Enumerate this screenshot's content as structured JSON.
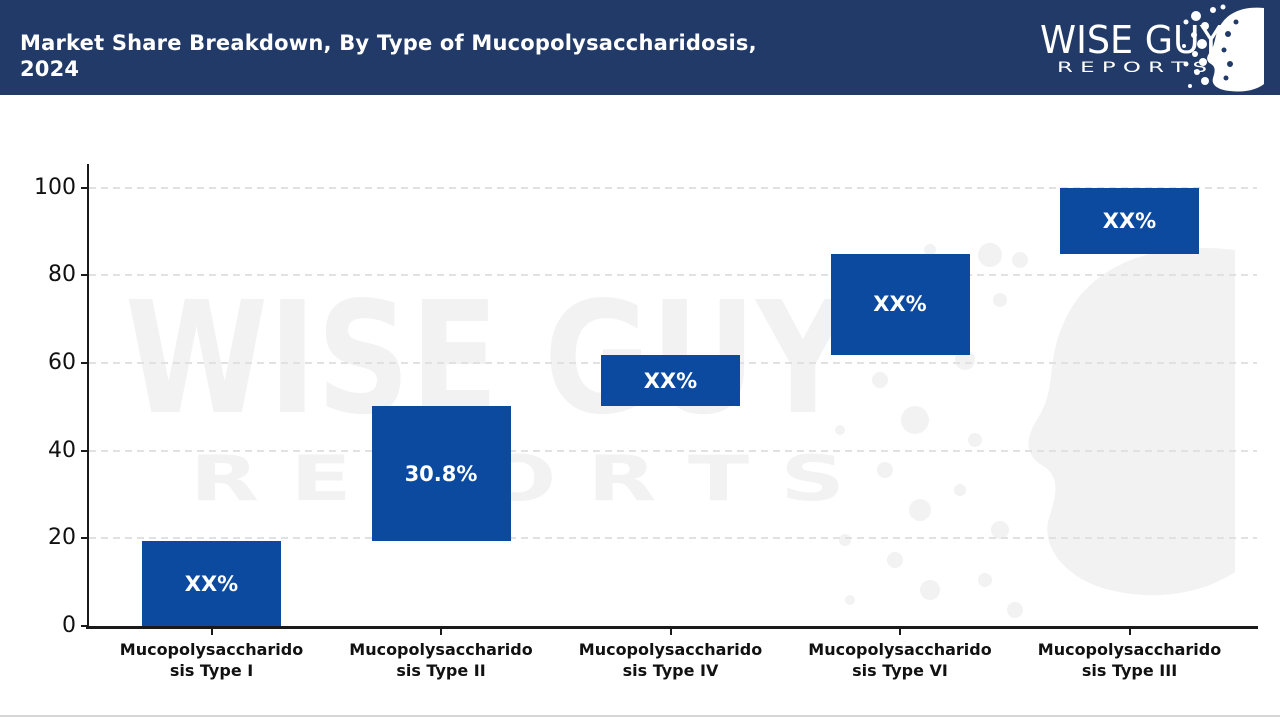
{
  "header": {
    "title_line1": "Market Share Breakdown, By Type of Mucopolysaccharidosis,",
    "title_line2": "2024"
  },
  "logo": {
    "name": "WISE GUY",
    "subtitle": "R E P O R T S"
  },
  "watermark": {
    "line1": "WISE GUY",
    "line2": "R E P O R T S"
  },
  "colors": {
    "banner": "#223a68",
    "bar": "#0b4a9f",
    "grid": "#e1e1e1",
    "axis": "#1a1a1a",
    "watermark": "#f2f2f2",
    "bar_label": "#ffffff",
    "tick_label": "#111111"
  },
  "chart_data": {
    "type": "bar",
    "subtype": "waterfall",
    "title": "Market Share Breakdown, By Type of Mucopolysaccharidosis, 2024",
    "xlabel": "",
    "ylabel": "",
    "ylim": [
      0,
      105
    ],
    "yticks": [
      0,
      20,
      40,
      60,
      80,
      100
    ],
    "grid": "horizontal-dashed",
    "legend": "none",
    "bar_color": "#0b4a9f",
    "categories": [
      "Mucopolysaccharidosis Type I",
      "Mucopolysaccharidosis Type II",
      "Mucopolysaccharidosis Type IV",
      "Mucopolysaccharidosis Type VI",
      "Mucopolysaccharidosis Type III"
    ],
    "bars": [
      {
        "label": "XX%",
        "base": 0,
        "top": 19.3,
        "value": 19.3,
        "tick_lines": [
          "Mucopolysaccharido",
          "sis Type I"
        ]
      },
      {
        "label": "30.8%",
        "base": 19.3,
        "top": 50.1,
        "value": 30.8,
        "tick_lines": [
          "Mucopolysaccharido",
          "sis Type II"
        ]
      },
      {
        "label": "XX%",
        "base": 50.1,
        "top": 61.8,
        "value": 11.7,
        "tick_lines": [
          "Mucopolysaccharido",
          "sis Type IV"
        ]
      },
      {
        "label": "XX%",
        "base": 61.8,
        "top": 84.9,
        "value": 23.1,
        "tick_lines": [
          "Mucopolysaccharido",
          "sis Type VI"
        ]
      },
      {
        "label": "XX%",
        "base": 84.9,
        "top": 100,
        "value": 15.1,
        "tick_lines": [
          "Mucopolysaccharido",
          "sis Type III"
        ]
      }
    ]
  }
}
